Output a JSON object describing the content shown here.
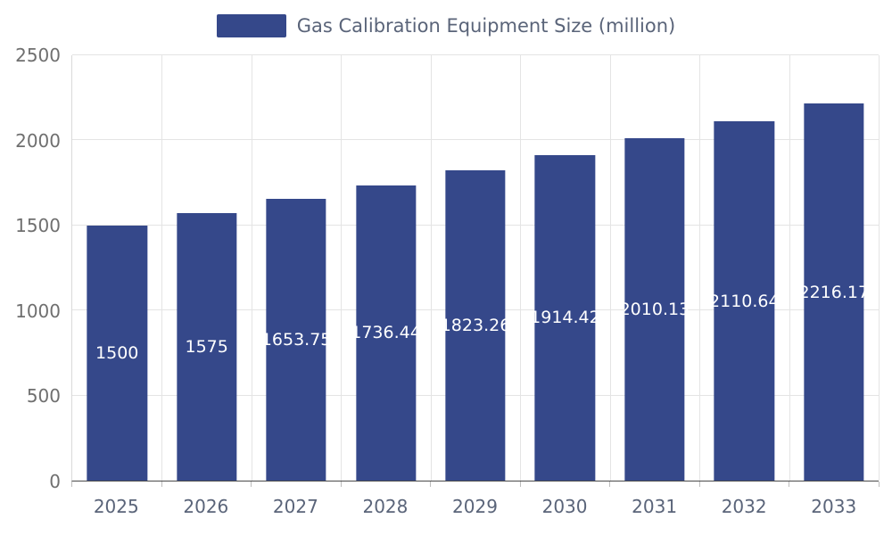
{
  "chart_data": {
    "type": "bar",
    "title": "Gas Calibration Equipment Size (million)",
    "legend_label": "Gas Calibration Equipment Size (million)",
    "legend_position": "top",
    "categories": [
      "2025",
      "2026",
      "2027",
      "2028",
      "2029",
      "2030",
      "2031",
      "2032",
      "2033"
    ],
    "values": [
      1500,
      1575,
      1653.75,
      1736.44,
      1823.26,
      1914.42,
      2010.13,
      2110.64,
      2216.17
    ],
    "xlabel": "",
    "ylabel": "",
    "ylim": [
      0,
      2500
    ],
    "yticks": [
      0,
      500,
      1000,
      1500,
      2000,
      2500
    ],
    "grid": true,
    "bar_color": "#35488a",
    "bar_label_color": "#ffffff"
  }
}
